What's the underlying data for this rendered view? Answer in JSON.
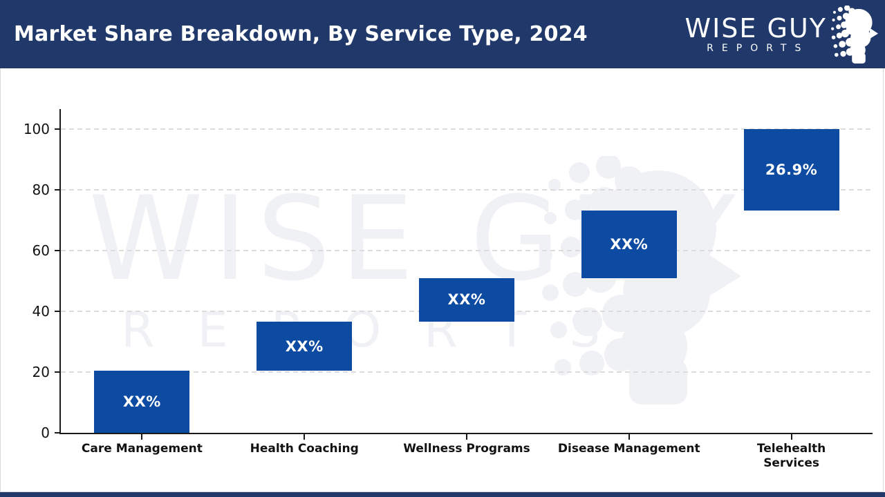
{
  "header": {
    "title": "Market Share Breakdown, By Service Type, 2024",
    "logo": {
      "wordmark": "WISE GUY",
      "subtitle": "REPORTS"
    }
  },
  "watermark": {
    "wordmark": "WISE GUY",
    "subtitle": "REPORTS"
  },
  "colors": {
    "header_navy": "#21396a",
    "bar_blue": "#0c4ba1",
    "grid_gray": "#dcdcdc",
    "watermark_gray": "#f0f1f4"
  },
  "chart_data": {
    "type": "bar",
    "subtype": "waterfall",
    "title": "Market Share Breakdown, By Service Type, 2024",
    "categories": [
      "Care Management",
      "Health Coaching",
      "Wellness Programs",
      "Disease Management",
      "Telehealth\nServices"
    ],
    "segments": [
      {
        "category": "Care Management",
        "start": 0,
        "end": 20.5,
        "label": "XX%"
      },
      {
        "category": "Health Coaching",
        "start": 20.5,
        "end": 36.5,
        "label": "XX%"
      },
      {
        "category": "Wellness Programs",
        "start": 36.5,
        "end": 51.0,
        "label": "XX%"
      },
      {
        "category": "Disease Management",
        "start": 51.0,
        "end": 73.1,
        "label": "XX%"
      },
      {
        "category": "Telehealth Services",
        "start": 73.1,
        "end": 100.0,
        "label": "26.9%"
      }
    ],
    "ylabel": "",
    "xlabel": "",
    "ylim": [
      0,
      105
    ],
    "yticks": [
      0,
      20,
      40,
      60,
      80,
      100
    ],
    "grid": "horizontal-dashed",
    "legend": null,
    "bar_color": "#0c4ba1",
    "bar_label_color": "#ffffff"
  }
}
